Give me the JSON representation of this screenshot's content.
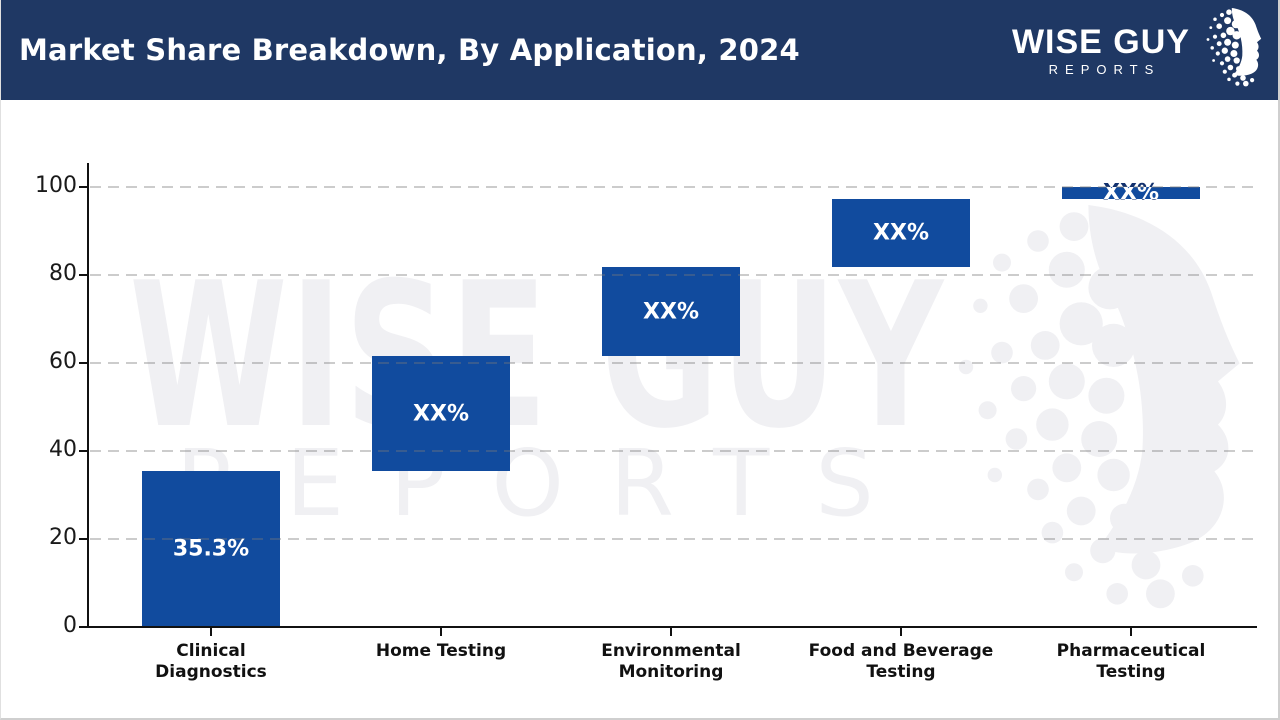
{
  "header": {
    "title": "Market Share Breakdown, By Application, 2024",
    "bg_color": "#1f3864",
    "logo_line1": "WISE GUY",
    "logo_line2": "REPORTS"
  },
  "watermark": {
    "line1": "WISE GUY",
    "line2": "REPORTS"
  },
  "chart_data": {
    "type": "bar",
    "variant": "waterfall",
    "title": "Market Share Breakdown, By Application, 2024",
    "categories": [
      "Clinical Diagnostics",
      "Home Testing",
      "Environmental Monitoring",
      "Food and Beverage Testing",
      "Pharmaceutical Testing"
    ],
    "segments": [
      {
        "category": "Clinical Diagnostics",
        "lines": [
          "Clinical",
          "Diagnostics"
        ],
        "start": 0,
        "end": 35.3,
        "label": "35.3%"
      },
      {
        "category": "Home Testing",
        "lines": [
          "Home Testing"
        ],
        "start": 35.3,
        "end": 61.5,
        "label": "XX%"
      },
      {
        "category": "Environmental Monitoring",
        "lines": [
          "Environmental",
          "Monitoring"
        ],
        "start": 61.5,
        "end": 81.6,
        "label": "XX%"
      },
      {
        "category": "Food and Beverage Testing",
        "lines": [
          "Food and Beverage",
          "Testing"
        ],
        "start": 81.6,
        "end": 97.2,
        "label": "XX%"
      },
      {
        "category": "Pharmaceutical Testing",
        "lines": [
          "Pharmaceutical",
          "Testing"
        ],
        "start": 97.2,
        "end": 100,
        "label": "XX%"
      }
    ],
    "xlabel": "",
    "ylabel": "",
    "ylim": [
      0,
      105
    ],
    "yticks": [
      0,
      20,
      40,
      60,
      80,
      100
    ],
    "grid": "horizontal-dashed",
    "legend": "none",
    "bar_color": "#114b9e",
    "label_color_inside": "#ffffff",
    "label_color_outside": "#12316e",
    "axis_color": "#111111"
  }
}
